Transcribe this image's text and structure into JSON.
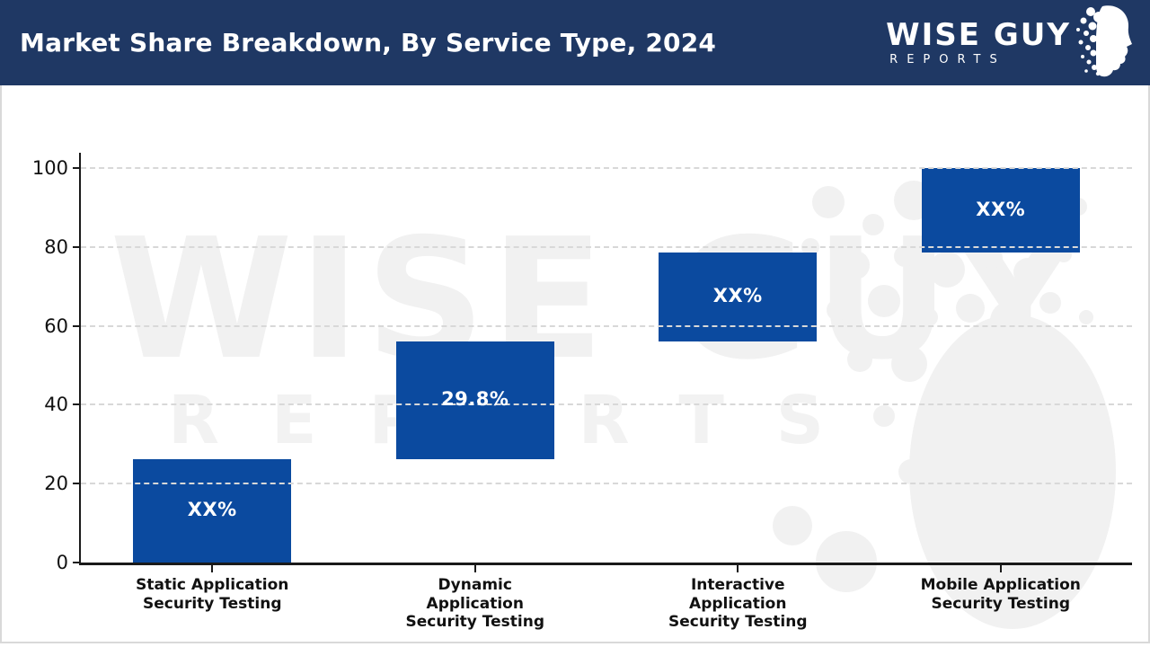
{
  "header": {
    "title": "Market Share Breakdown, By Service Type, 2024",
    "logo": {
      "line1": "WISE GUY",
      "line2": "REPORTS"
    }
  },
  "watermark": {
    "line1": "WISE GUY",
    "line2": "REPORTS"
  },
  "chart_data": {
    "type": "bar",
    "subtype": "waterfall",
    "title": "Market Share Breakdown, By Service Type, 2024",
    "xlabel": "",
    "ylabel": "",
    "ylim": [
      0,
      100
    ],
    "yticks": [
      0,
      20,
      40,
      60,
      80,
      100
    ],
    "grid": true,
    "grid_style": "dashed",
    "categories": [
      "Static Application Security Testing",
      "Dynamic Application Security Testing",
      "Interactive Application Security Testing",
      "Mobile Application Security Testing"
    ],
    "bars": [
      {
        "category_lines": [
          "Static Application",
          "Security Testing"
        ],
        "start": 0,
        "end": 26.3,
        "value": 26.3,
        "label": "XX%"
      },
      {
        "category_lines": [
          "Dynamic",
          "Application",
          "Security Testing"
        ],
        "start": 26.3,
        "end": 56.1,
        "value": 29.8,
        "label": "29.8%"
      },
      {
        "category_lines": [
          "Interactive",
          "Application",
          "Security Testing"
        ],
        "start": 56.1,
        "end": 78.6,
        "value": 22.5,
        "label": "XX%"
      },
      {
        "category_lines": [
          "Mobile Application",
          "Security Testing"
        ],
        "start": 78.6,
        "end": 100,
        "value": 21.4,
        "label": "XX%"
      }
    ]
  },
  "colors": {
    "header_bg": "#1f3864",
    "bar": "#0b4a9f",
    "bar_label": "#ffffff",
    "grid": "#d8d8d8",
    "axis": "#1a1a1a",
    "tick_text": "#111111",
    "watermark": "#f1f1f1"
  }
}
